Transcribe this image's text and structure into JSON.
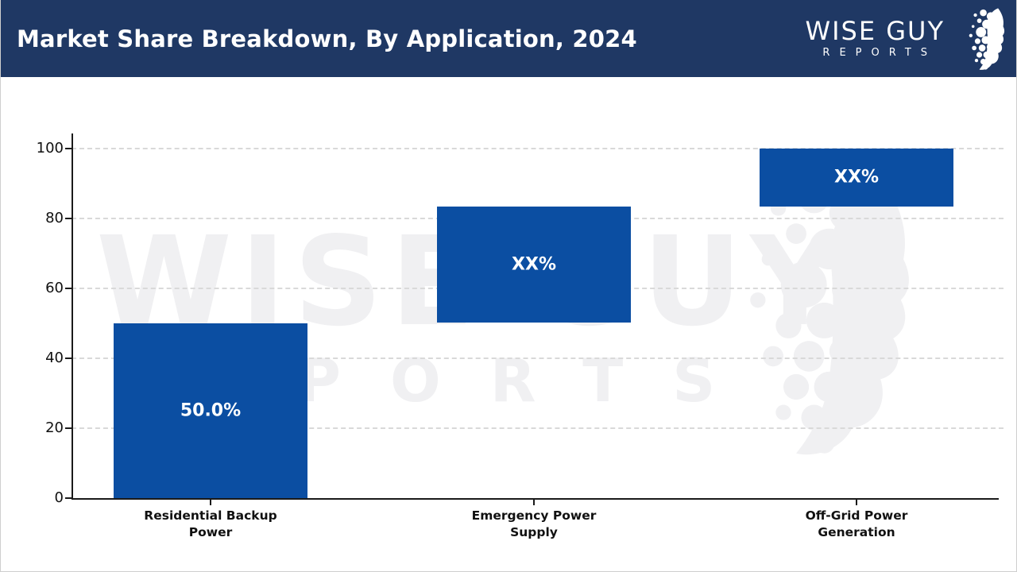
{
  "header": {
    "title": "Market Share Breakdown, By Application, 2024",
    "bg_color": "#1f3864",
    "logo": {
      "line1": "WISE GUY",
      "line2": "REPORTS"
    }
  },
  "watermark": {
    "line1": "WISE GUY",
    "line2": "REPORTS"
  },
  "chart_data": {
    "type": "bar",
    "variant": "floating-waterfall",
    "title": "Market Share Breakdown, By Application, 2024",
    "categories": [
      "Residential Backup\nPower",
      "Emergency Power\nSupply",
      "Off-Grid Power\nGeneration"
    ],
    "segments": [
      {
        "category": "Residential Backup Power",
        "start": 0,
        "end": 50.0,
        "label": "50.0%"
      },
      {
        "category": "Emergency Power Supply",
        "start": 50.0,
        "end": 83.3,
        "label": "XX%"
      },
      {
        "category": "Off-Grid Power Generation",
        "start": 83.3,
        "end": 100.0,
        "label": "XX%"
      }
    ],
    "ylim": [
      0,
      100
    ],
    "yticks": [
      0,
      20,
      40,
      60,
      80,
      100
    ],
    "grid": true,
    "legend": false,
    "bar_color": "#0b4ea2",
    "label_color": "#ffffff",
    "axis_color": "#1a1a1a"
  }
}
